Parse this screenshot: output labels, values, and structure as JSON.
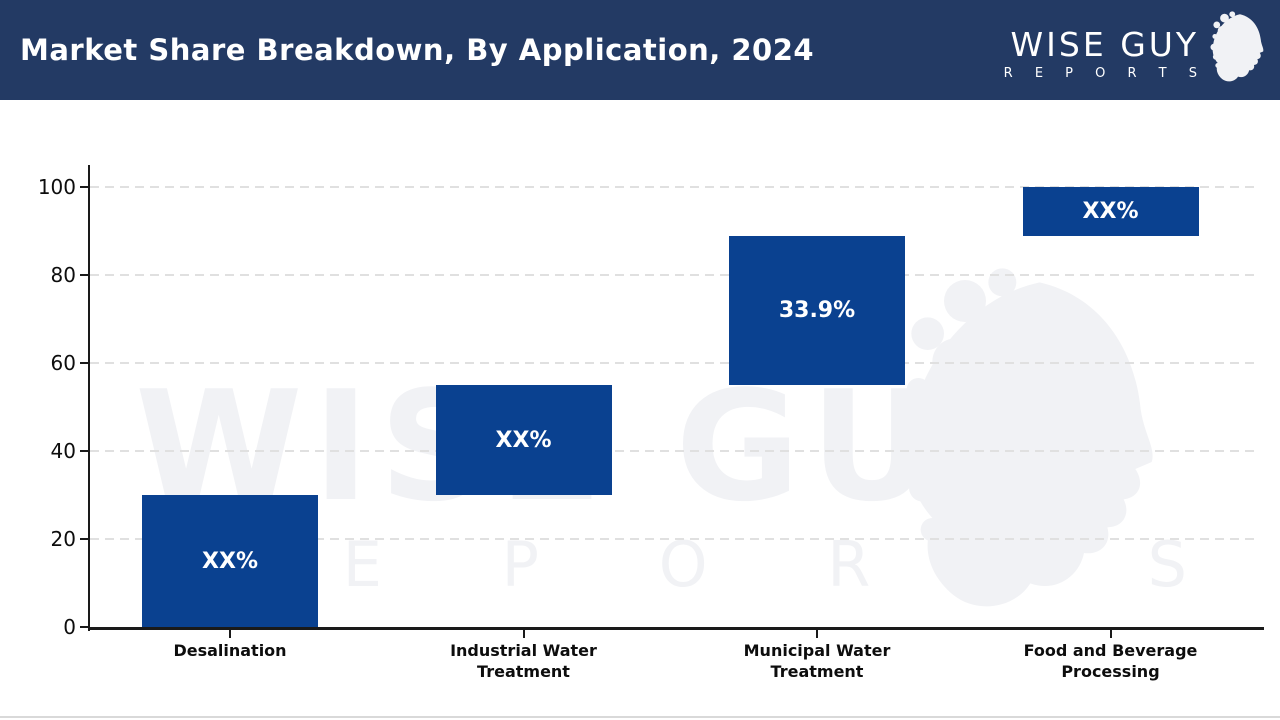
{
  "header": {
    "title": "Market Share Breakdown, By Application, 2024",
    "logo": {
      "line1": "WISE GUY",
      "line2": "R E P O R T S"
    }
  },
  "watermark": {
    "line1": "WISE GUY",
    "line2": "R E P O R T S"
  },
  "colors": {
    "header_bg": "#233a64",
    "bar": "#0a4190",
    "grid": "#e0e0e0",
    "axis": "#1a1a1a",
    "watermark": "#f1f2f5"
  },
  "chart_data": {
    "type": "bar",
    "variant": "floating-waterfall",
    "title": "Market Share Breakdown, By Application, 2024",
    "categories": [
      "Desalination",
      "Industrial Water Treatment",
      "Municipal Water Treatment",
      "Food and Beverage Processing"
    ],
    "series": [
      {
        "name": "Market share (%)",
        "ranges": [
          [
            0,
            30
          ],
          [
            30,
            55
          ],
          [
            55,
            88.9
          ],
          [
            88.9,
            100
          ]
        ],
        "labels": [
          "XX%",
          "XX%",
          "33.9%",
          "XX%"
        ]
      }
    ],
    "ylim": [
      0,
      100
    ],
    "yticks": [
      0,
      20,
      40,
      60,
      80,
      100
    ],
    "grid": "horizontal-dashed",
    "legend": "none",
    "xlabel": "",
    "ylabel": ""
  }
}
